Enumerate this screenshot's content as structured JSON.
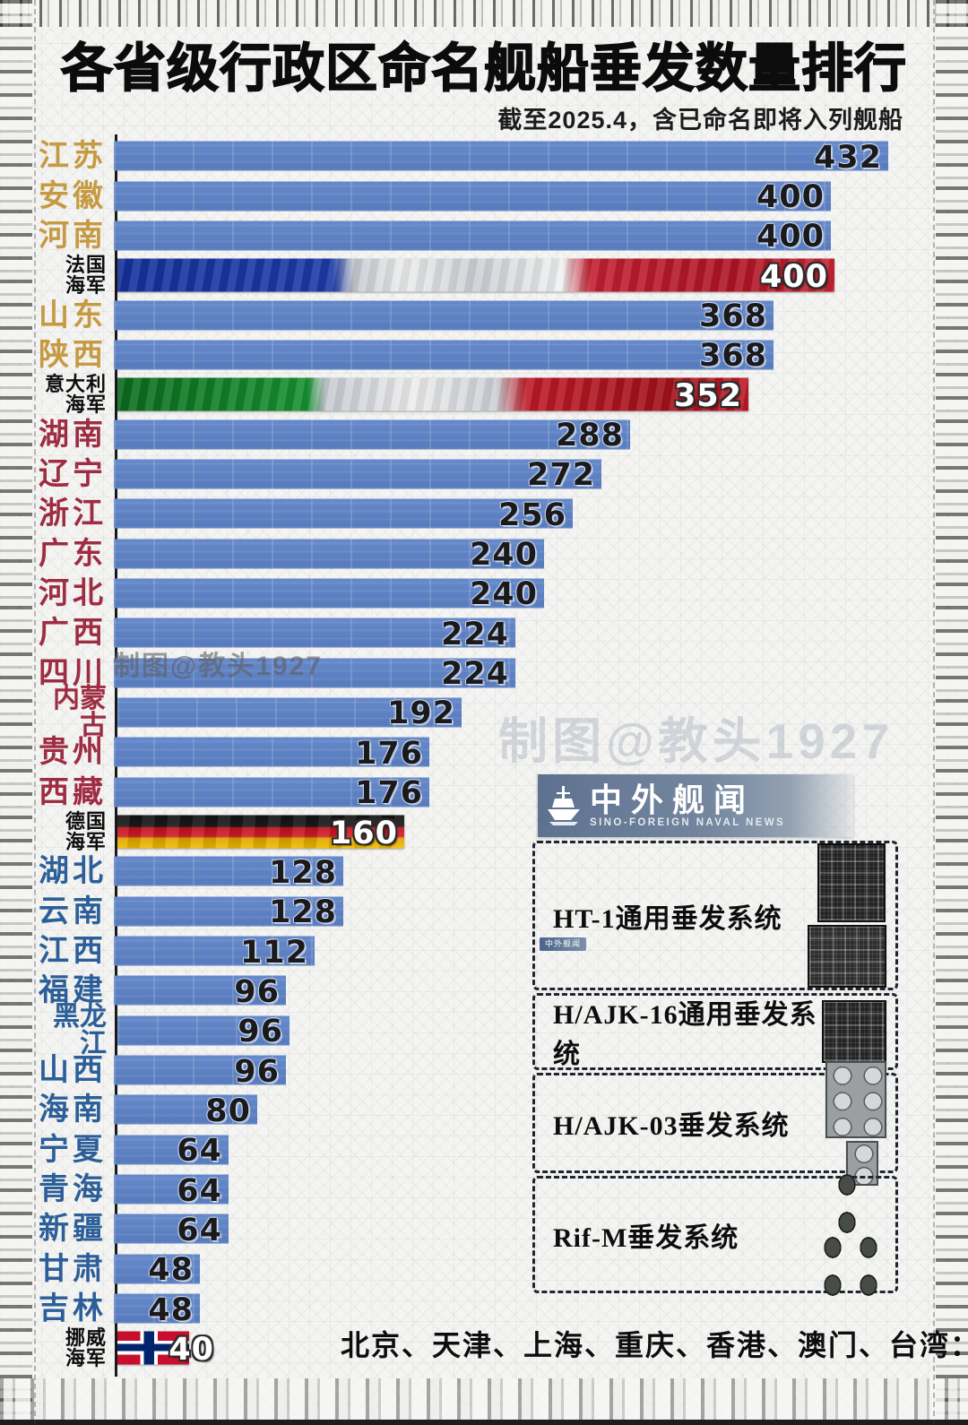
{
  "title": "各省级行政区命名舰船垂发数量排行",
  "subtitle": "截至2025.4，含已命名即将入列舰船",
  "watermark_small": "制图@教头1927",
  "watermark_large": "制图@教头1927",
  "logo": {
    "name_cn": "中外舰闻",
    "name_en": "SINO-FOREIGN NAVAL NEWS",
    "inline_badge": "中外舰闻"
  },
  "legend": {
    "items": [
      {
        "label": "HT-1通用垂发系统",
        "icon": "ht1-vls-icon"
      },
      {
        "label": "H/AJK-16通用垂发系统",
        "icon": "ajk16-vls-icon"
      },
      {
        "label": "H/AJK-03垂发系统",
        "icon": "ajk03-vls-icon"
      },
      {
        "label": "Rif-M垂发系统",
        "icon": "rifm-vls-icon"
      }
    ]
  },
  "footnote": "北京、天津、上海、重庆、香港、澳门、台湾：暂无",
  "chart_data": {
    "type": "bar",
    "orientation": "horizontal",
    "title": "各省级行政区命名舰船垂发数量排行",
    "xlim": [
      0,
      440
    ],
    "grid": false,
    "legend_position": "right-bottom",
    "colors": {
      "bar_blue": "#5b80c3",
      "label_gold": "#c69a43",
      "label_red": "#9e2c42",
      "label_blue": "#2c5f99",
      "label_navy": "#0d0d0d"
    },
    "bars": [
      {
        "label": "江苏",
        "value": 432,
        "group": "gold",
        "style": "blue"
      },
      {
        "label": "安徽",
        "value": 400,
        "group": "gold",
        "style": "blue"
      },
      {
        "label": "河南",
        "value": 400,
        "group": "gold",
        "style": "blue"
      },
      {
        "label": "法国海军",
        "label_lines": [
          "法国",
          "海军"
        ],
        "value": 400,
        "group": "navy",
        "style": "france"
      },
      {
        "label": "山东",
        "value": 368,
        "group": "gold",
        "style": "blue"
      },
      {
        "label": "陕西",
        "value": 368,
        "group": "gold",
        "style": "blue"
      },
      {
        "label": "意大利海军",
        "label_lines": [
          "意大利",
          "海军"
        ],
        "value": 352,
        "group": "navy",
        "style": "italy"
      },
      {
        "label": "湖南",
        "value": 288,
        "group": "red",
        "style": "blue"
      },
      {
        "label": "辽宁",
        "value": 272,
        "group": "red",
        "style": "blue"
      },
      {
        "label": "浙江",
        "value": 256,
        "group": "red",
        "style": "blue"
      },
      {
        "label": "广东",
        "value": 240,
        "group": "red",
        "style": "blue"
      },
      {
        "label": "河北",
        "value": 240,
        "group": "red",
        "style": "blue"
      },
      {
        "label": "广西",
        "value": 224,
        "group": "red",
        "style": "blue"
      },
      {
        "label": "四川",
        "value": 224,
        "group": "red",
        "style": "blue"
      },
      {
        "label": "内蒙古",
        "value": 192,
        "group": "red",
        "style": "blue"
      },
      {
        "label": "贵州",
        "value": 176,
        "group": "red",
        "style": "blue"
      },
      {
        "label": "西藏",
        "value": 176,
        "group": "red",
        "style": "blue"
      },
      {
        "label": "德国海军",
        "label_lines": [
          "德国",
          "海军"
        ],
        "value": 160,
        "group": "navy",
        "style": "germany"
      },
      {
        "label": "湖北",
        "value": 128,
        "group": "blue",
        "style": "blue"
      },
      {
        "label": "云南",
        "value": 128,
        "group": "blue",
        "style": "blue"
      },
      {
        "label": "江西",
        "value": 112,
        "group": "blue",
        "style": "blue"
      },
      {
        "label": "福建",
        "value": 96,
        "group": "blue",
        "style": "blue"
      },
      {
        "label": "黑龙江",
        "value": 96,
        "group": "blue",
        "style": "blue"
      },
      {
        "label": "山西",
        "value": 96,
        "group": "blue",
        "style": "blue"
      },
      {
        "label": "海南",
        "value": 80,
        "group": "blue",
        "style": "blue"
      },
      {
        "label": "宁夏",
        "value": 64,
        "group": "blue",
        "style": "blue"
      },
      {
        "label": "青海",
        "value": 64,
        "group": "blue",
        "style": "blue"
      },
      {
        "label": "新疆",
        "value": 64,
        "group": "blue",
        "style": "blue"
      },
      {
        "label": "甘肃",
        "value": 48,
        "group": "blue",
        "style": "blue"
      },
      {
        "label": "吉林",
        "value": 48,
        "group": "blue",
        "style": "blue"
      },
      {
        "label": "挪威海军",
        "label_lines": [
          "挪威",
          "海军"
        ],
        "value": 40,
        "group": "navy",
        "style": "norway"
      }
    ]
  }
}
